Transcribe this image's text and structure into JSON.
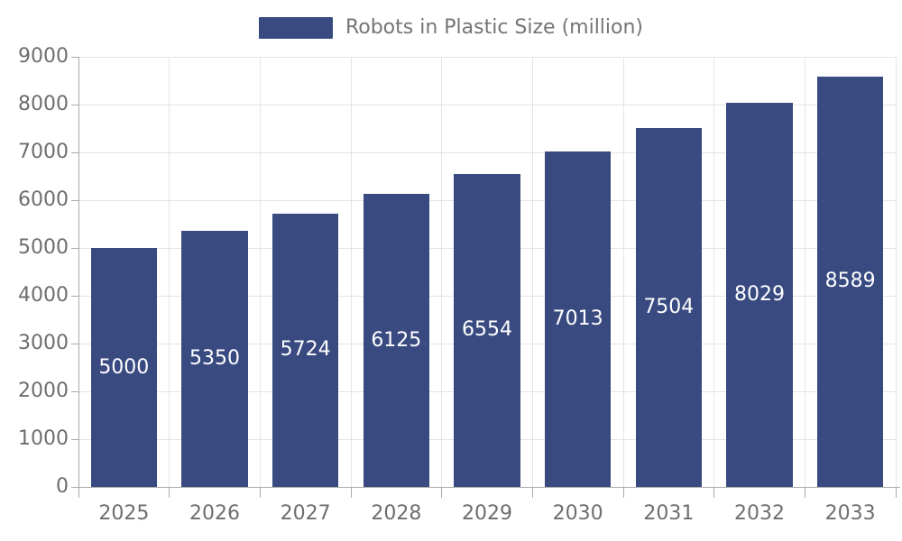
{
  "legend": {
    "label": "Robots in Plastic Size (million)"
  },
  "chart_data": {
    "type": "bar",
    "title": "Robots in Plastic Size (million)",
    "series_name": "Robots in Plastic Size (million)",
    "categories": [
      "2025",
      "2026",
      "2027",
      "2028",
      "2029",
      "2030",
      "2031",
      "2032",
      "2033"
    ],
    "values": [
      5000,
      5350,
      5724,
      6125,
      6554,
      7013,
      7504,
      8029,
      8589
    ],
    "value_labels": [
      "5000",
      "5350",
      "5724",
      "6125",
      "6554",
      "7013",
      "7504",
      "8029",
      "8589"
    ],
    "xlabel": "",
    "ylabel": "",
    "ylim": [
      0,
      9000
    ],
    "ytick_step": 1000,
    "yticks": [
      0,
      1000,
      2000,
      3000,
      4000,
      5000,
      6000,
      7000,
      8000,
      9000
    ],
    "grid": true,
    "legend_position": "top-center",
    "value_label_position": "center-of-bar",
    "colors": {
      "bar": "#394A81",
      "bar_value_text": "#FFFFFF",
      "grid": "#E4E4E4",
      "axis": "#AAAAAA",
      "tick_label": "#6E6E6E",
      "legend_text": "#757575"
    }
  }
}
